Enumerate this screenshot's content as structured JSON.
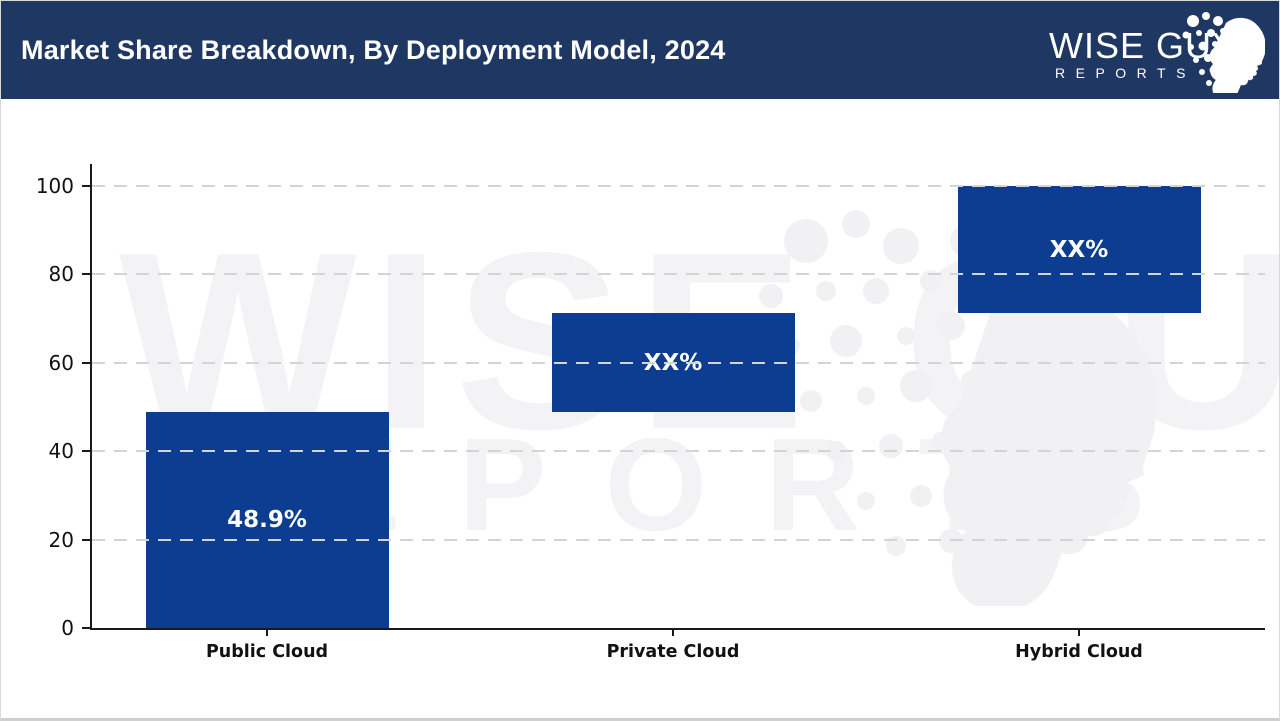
{
  "header": {
    "title": "Market Share Breakdown, By Deployment Model, 2024"
  },
  "brand": {
    "name": "WISE GUY",
    "subtitle": "REPORTS"
  },
  "watermark": {
    "line1": "WISE GUY",
    "line2": "REPORTS"
  },
  "colors": {
    "header_bg": "#1F3863",
    "bar": "#0C3D91",
    "bar_label": "#ffffff",
    "gridline": "#d4d4d4",
    "axis": "#1a1a1a",
    "watermark": "#f3f3f5"
  },
  "chart_data": {
    "type": "bar",
    "subtype": "waterfall-stacked-percentage",
    "title": "Market Share Breakdown, By Deployment Model, 2024",
    "categories": [
      "Public Cloud",
      "Private Cloud",
      "Hybrid Cloud"
    ],
    "segments": [
      {
        "category": "Public Cloud",
        "start": 0,
        "end": 48.9,
        "label": "48.9%"
      },
      {
        "category": "Private Cloud",
        "start": 48.9,
        "end": 71.2,
        "label": "XX%"
      },
      {
        "category": "Hybrid Cloud",
        "start": 71.2,
        "end": 100,
        "label": "XX%"
      }
    ],
    "xlabel": "",
    "ylabel": "",
    "yticks": [
      0,
      20,
      40,
      60,
      80,
      100
    ],
    "ylim": [
      0,
      105
    ],
    "grid": "horizontal-dashed",
    "legend": "none",
    "bar_color": "#0C3D91",
    "label_color": "#ffffff"
  }
}
